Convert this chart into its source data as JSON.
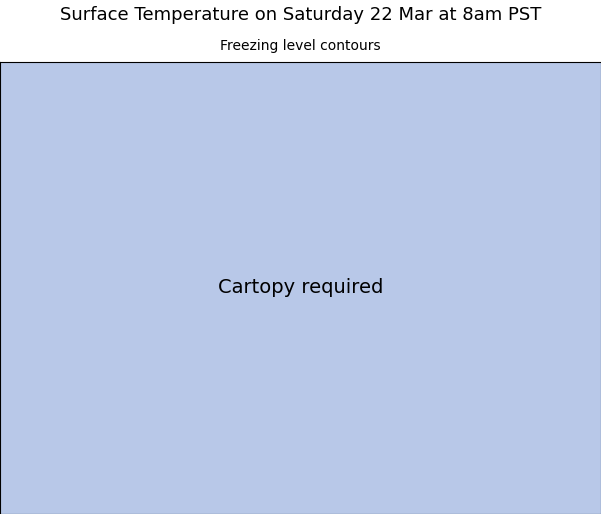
{
  "title": "Surface Temperature on Saturday 22 Mar at 8am PST",
  "subtitle": "Freezing level contours",
  "title_fontsize": 13,
  "subtitle_fontsize": 10,
  "fig_width": 6.01,
  "fig_height": 5.14,
  "dpi": 100,
  "lon_min": 99.0,
  "lon_max": 127.0,
  "lat_min": 0.0,
  "lat_max": 24.0,
  "ocean_color": "#b8c8e8",
  "land_base_color": "#c87830",
  "contour_color": "#cc0000",
  "grid_color": "#aaaacc",
  "grid_linewidth": 0.5,
  "border_color": "#000000",
  "border_linewidth": 0.7,
  "white_bg": "#ffffff",
  "title_area_color": "#f8f8f8"
}
